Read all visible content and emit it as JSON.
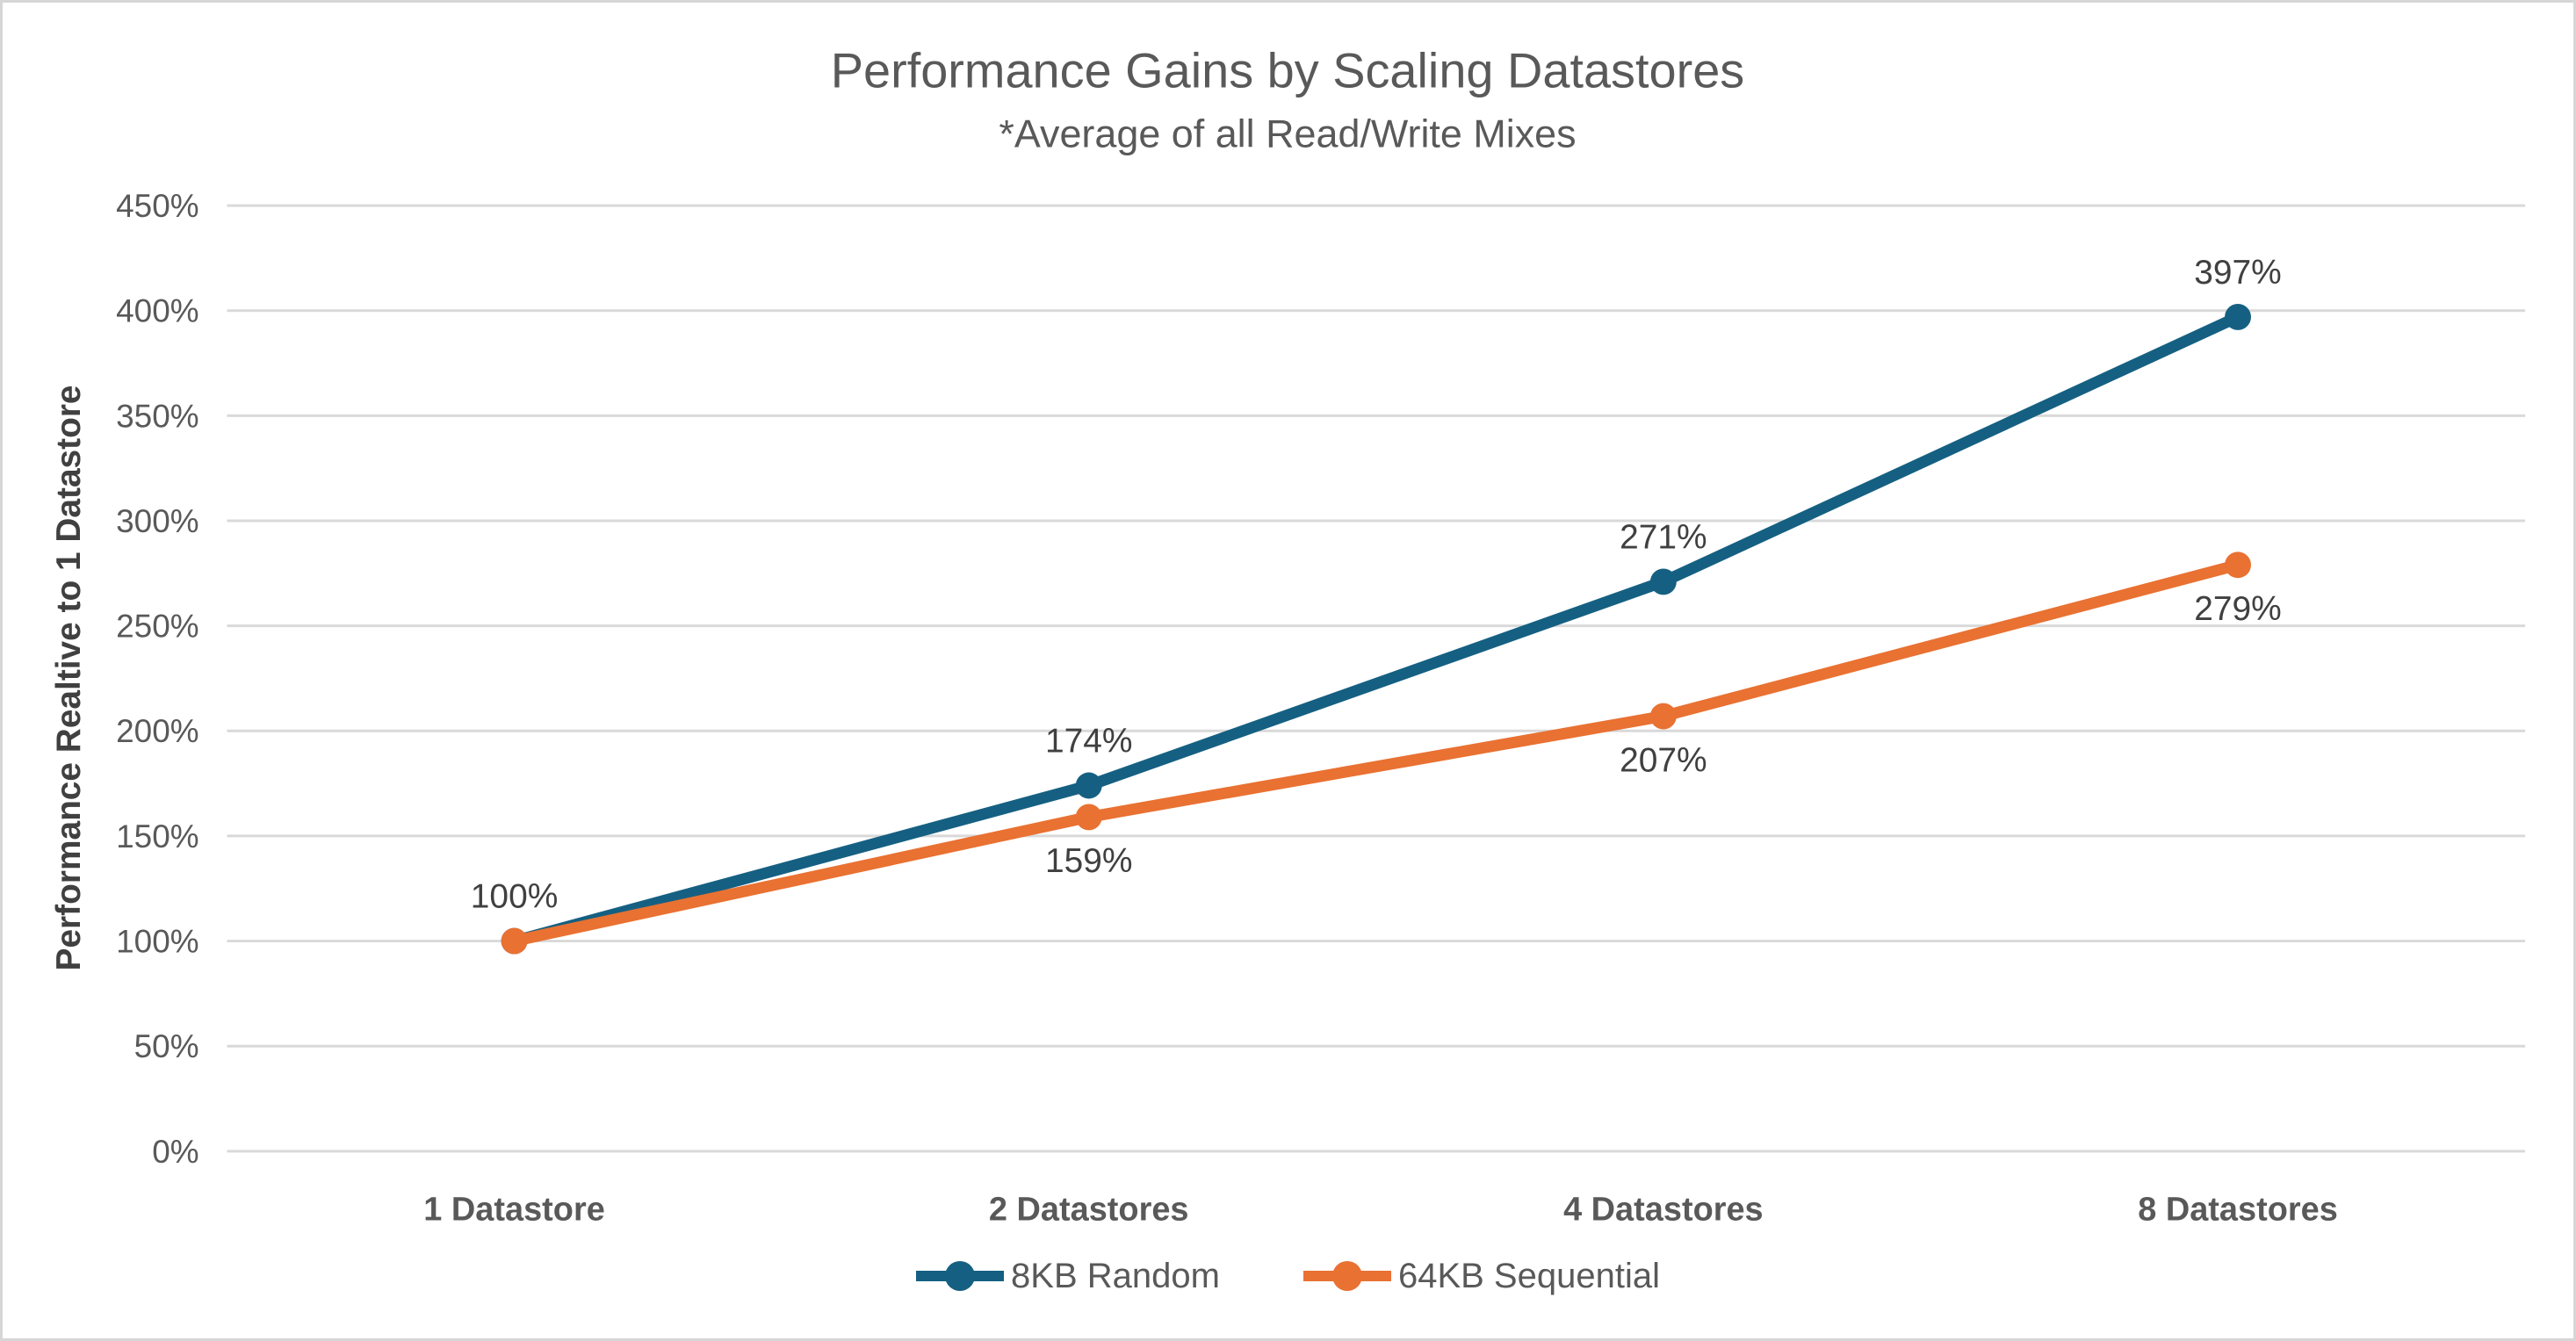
{
  "chart_data": {
    "type": "line",
    "title": "Performance Gains by Scaling Datastores",
    "subtitle": "*Average of all Read/Write Mixes",
    "ylabel": "Performance Realtive to 1 Datastore",
    "xlabel": "",
    "categories": [
      "1 Datastore",
      "2 Datastores",
      "4 Datastores",
      "8 Datastores"
    ],
    "series": [
      {
        "name": "8KB Random",
        "color": "#156082",
        "values": [
          100,
          174,
          271,
          397
        ],
        "labels": [
          "100%",
          "174%",
          "271%",
          "397%"
        ],
        "label_position": "above"
      },
      {
        "name": "64KB Sequential",
        "color": "#E97132",
        "values": [
          100,
          159,
          207,
          279
        ],
        "labels": [
          null,
          "159%",
          "207%",
          "279%"
        ],
        "label_position": "below"
      }
    ],
    "ylim": [
      0,
      450
    ],
    "ytick_step": 50,
    "ytick_labels": [
      "0%",
      "50%",
      "100%",
      "150%",
      "200%",
      "250%",
      "300%",
      "350%",
      "400%",
      "450%"
    ],
    "grid": true,
    "legend_position": "bottom",
    "colors": {
      "grid": "#D9D9D9",
      "tick_text": "#595959",
      "data_label_text": "#404040",
      "title_text": "#595959",
      "frame_border": "#D6D6D6",
      "background": "#FFFFFF"
    }
  }
}
